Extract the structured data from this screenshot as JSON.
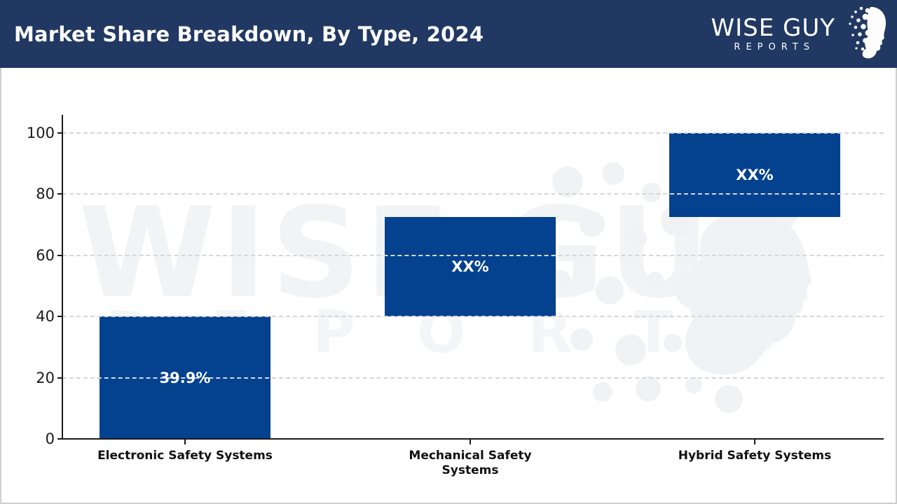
{
  "header": {
    "title": "Market Share Breakdown, By Type, 2024",
    "logo": {
      "line1": "WISE GUY",
      "line2": "REPORTS"
    }
  },
  "watermark": {
    "line1": "WISE GUY",
    "line2": "R E P O R T S"
  },
  "chart_data": {
    "type": "bar",
    "variant": "floating-waterfall",
    "title": "Market Share Breakdown, By Type, 2024",
    "categories": [
      "Electronic Safety Systems",
      "Mechanical Safety Systems",
      "Hybrid Safety Systems"
    ],
    "bars": [
      {
        "category": "Electronic Safety Systems",
        "start": 0,
        "end": 39.9,
        "label": "39.9%"
      },
      {
        "category": "Mechanical Safety Systems",
        "start": 39.9,
        "end": 72.4,
        "label": "XX%"
      },
      {
        "category": "Hybrid Safety Systems",
        "start": 72.4,
        "end": 100,
        "label": "XX%"
      }
    ],
    "ylim": [
      0,
      100
    ],
    "yticks": [
      0,
      20,
      40,
      60,
      80,
      100
    ],
    "xlabel": "",
    "ylabel": "",
    "grid": "dashed-horizontal",
    "legend": "none",
    "colors": {
      "bar": "#04418f",
      "bar_label": "#ffffff",
      "axis": "#1a1a1a",
      "grid": "#d7d7d7",
      "header_bg": "#213863",
      "watermark": "#f2f3f5"
    }
  }
}
